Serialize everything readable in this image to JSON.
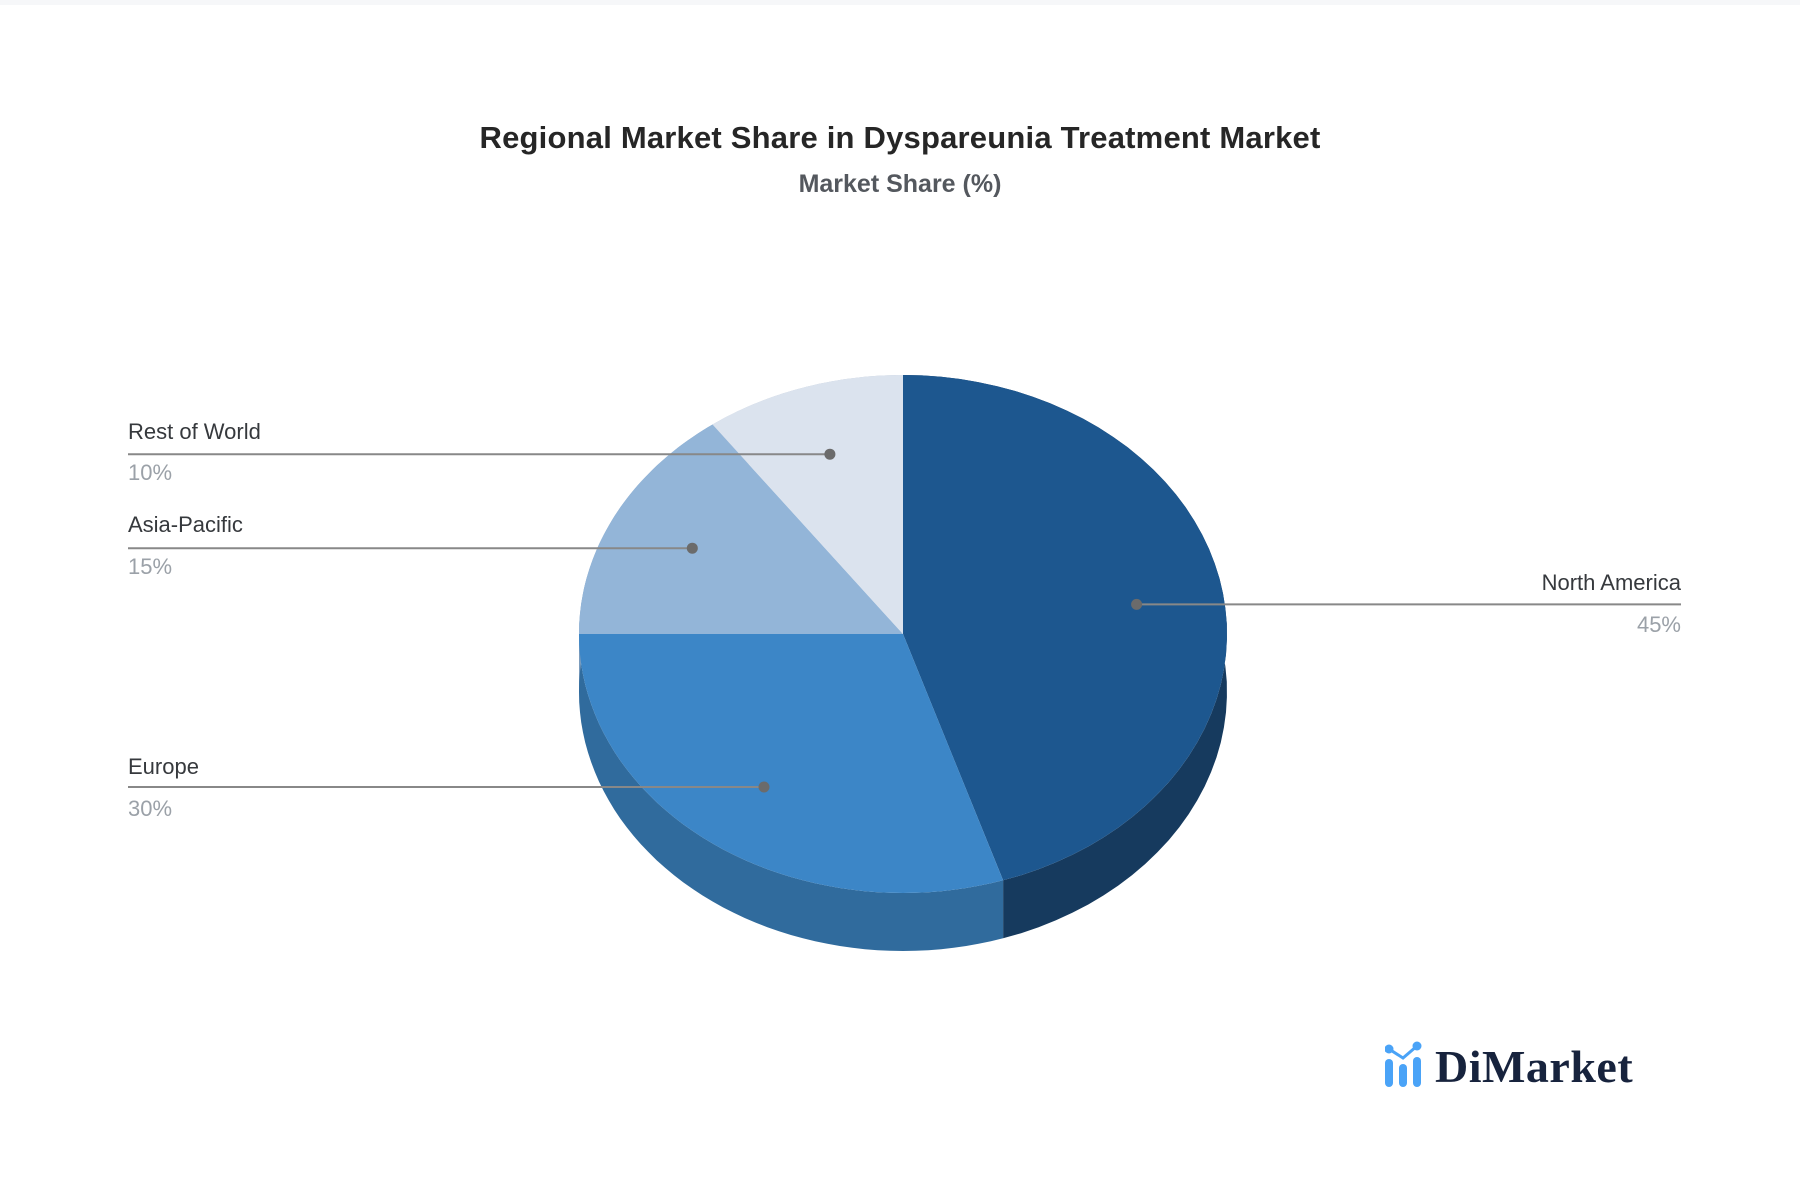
{
  "page": {
    "title": "Regional Market Share in Dyspareunia Treatment Market",
    "subtitle": "Market Share (%)"
  },
  "chart_data": {
    "type": "pie",
    "title": "Regional Market Share in Dyspareunia Treatment Market",
    "subtitle": "Market Share (%)",
    "unit": "%",
    "effect": "3d",
    "start_angle": "12-oclock",
    "direction": "clockwise",
    "legend": "none, external labels with leader lines",
    "slices": [
      {
        "label": "North America",
        "value": 45,
        "display": "45%",
        "color": "#1d578f",
        "side_color": "#163a5e",
        "label_side": "right"
      },
      {
        "label": "Europe",
        "value": 30,
        "display": "30%",
        "color": "#3c86c7",
        "side_color": "#306b9d",
        "label_side": "left"
      },
      {
        "label": "Asia-Pacific",
        "value": 15,
        "display": "15%",
        "color": "#93b5d8",
        "side_color": "#7b9cbd",
        "label_side": "left"
      },
      {
        "label": "Rest of World",
        "value": 10,
        "display": "10%",
        "color": "#dbe3ee",
        "side_color": "#b8c2d1",
        "label_side": "left"
      }
    ],
    "leader_line_color": "#888888",
    "leader_dot_color": "#6b6b6b",
    "label_color": "#36393d",
    "value_color": "#9ba1a8"
  },
  "branding": {
    "name": "DiMarket",
    "logo_icon": "bar-line-chart-icon",
    "icon_color": "#4aa3f7",
    "text_color": "#17233d"
  }
}
